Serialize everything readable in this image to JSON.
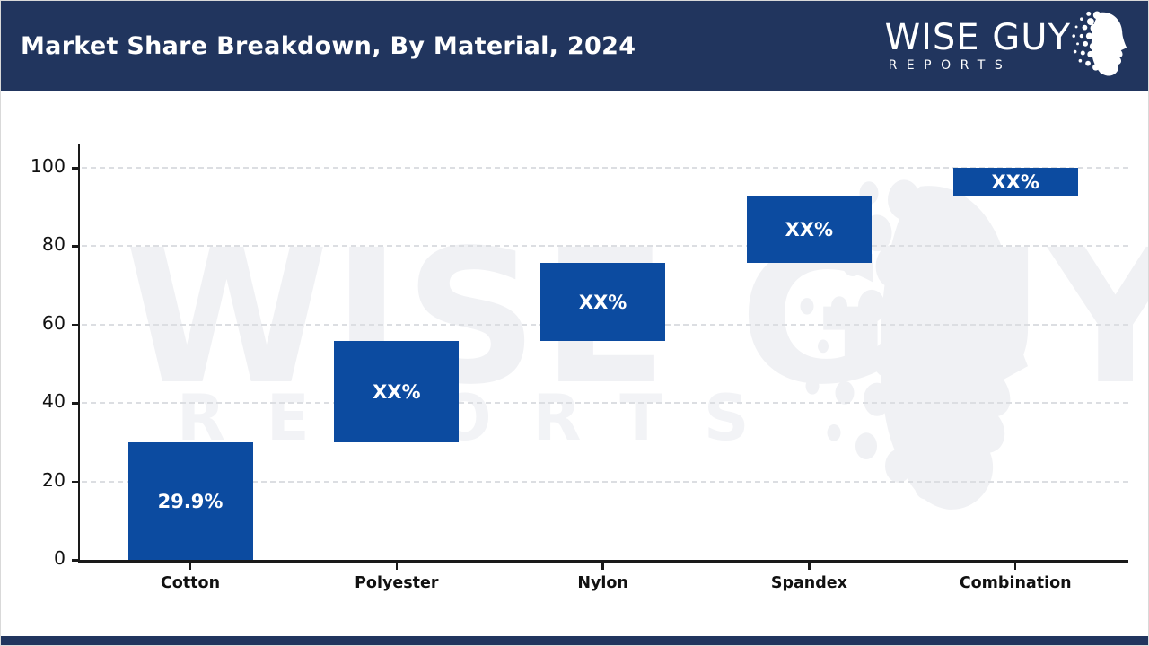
{
  "header": {
    "title": "Market Share Breakdown, By Material, 2024",
    "bg_color": "#21355e",
    "logo": {
      "wordmark": "WISE GUY",
      "subtext": "REPORTS"
    }
  },
  "watermark": {
    "line1": "WISE GUY",
    "line2": "REPORTS"
  },
  "chart_data": {
    "type": "bar",
    "subtype": "waterfall",
    "title": "Market Share Breakdown, By Material, 2024",
    "xlabel": "",
    "ylabel": "",
    "categories": [
      "Cotton",
      "Polyester",
      "Nylon",
      "Spandex",
      "Combination"
    ],
    "segments": [
      {
        "category": "Cotton",
        "base": 0,
        "top": 29.9,
        "label": "29.9%"
      },
      {
        "category": "Polyester",
        "base": 29.9,
        "top": 55.8,
        "label": "XX%"
      },
      {
        "category": "Nylon",
        "base": 55.8,
        "top": 75.7,
        "label": "XX%"
      },
      {
        "category": "Spandex",
        "base": 75.7,
        "top": 92.9,
        "label": "XX%"
      },
      {
        "category": "Combination",
        "base": 92.9,
        "top": 100,
        "label": "XX%"
      }
    ],
    "yticks": [
      0,
      20,
      40,
      60,
      80,
      100
    ],
    "ylim": [
      0,
      106
    ],
    "grid": "dashed horizontal",
    "legend": "none",
    "bar_color": "#0c4ba0",
    "bar_label_color": "#ffffff"
  }
}
